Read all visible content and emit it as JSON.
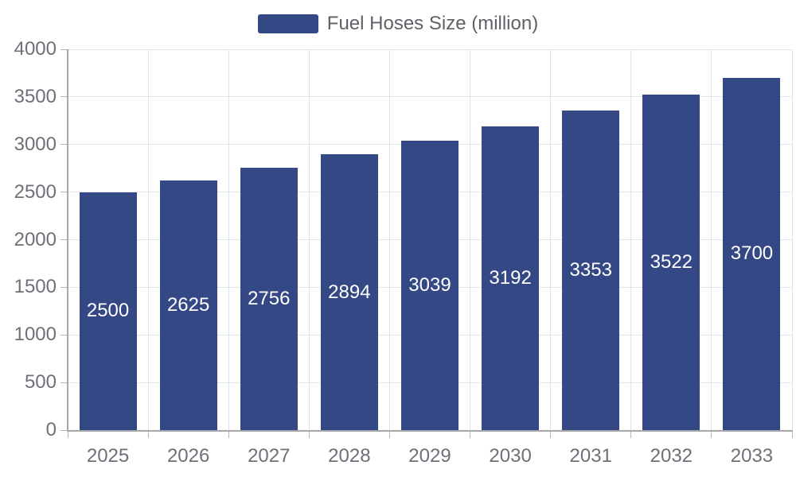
{
  "chart_data": {
    "type": "bar",
    "title": "",
    "legend": "Fuel Hoses Size (million)",
    "categories": [
      "2025",
      "2026",
      "2027",
      "2028",
      "2029",
      "2030",
      "2031",
      "2032",
      "2033"
    ],
    "values": [
      2500,
      2625,
      2756,
      2894,
      3039,
      3192,
      3353,
      3522,
      3700
    ],
    "xlabel": "",
    "ylabel": "",
    "ylim": [
      0,
      4000
    ],
    "yticks": [
      0,
      500,
      1000,
      1500,
      2000,
      2500,
      3000,
      3500,
      4000
    ],
    "grid": true,
    "legend_position": "top",
    "bar_label_position": "inside-middle"
  },
  "colors": {
    "bar": "#344886",
    "bar_label": "#ffffff",
    "axis_line": "#a8a8a8",
    "tick": "#b6b6b6",
    "grid_line": "#e2e4ec",
    "axis_text": "#6e7079",
    "legend_text": "#5e6267",
    "background": "#ffffff"
  }
}
